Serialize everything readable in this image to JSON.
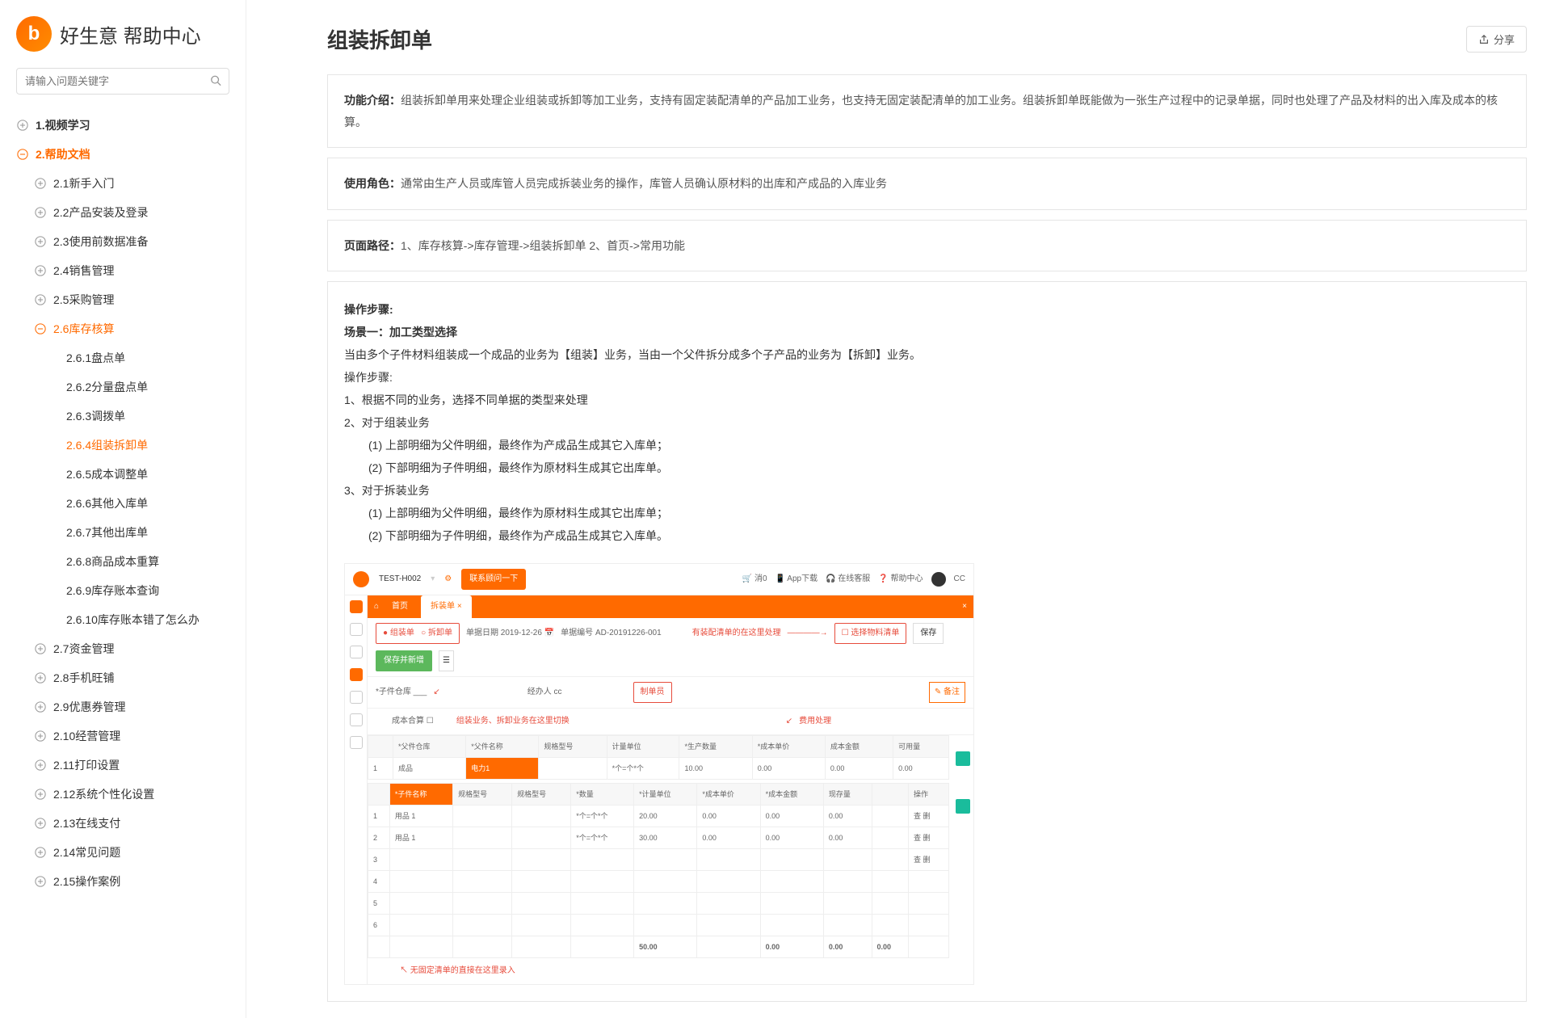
{
  "logo": {
    "glyph": "b",
    "text": "好生意 帮助中心"
  },
  "search": {
    "placeholder": "请输入问题关键字"
  },
  "nav": [
    {
      "label": "1.视频学习",
      "level": 1,
      "icon": "plus"
    },
    {
      "label": "2.帮助文档",
      "level": 1,
      "icon": "minus",
      "expanded": true
    },
    {
      "label": "2.1新手入门",
      "level": 2,
      "icon": "plus"
    },
    {
      "label": "2.2产品安装及登录",
      "level": 2,
      "icon": "plus"
    },
    {
      "label": "2.3使用前数据准备",
      "level": 2,
      "icon": "plus"
    },
    {
      "label": "2.4销售管理",
      "level": 2,
      "icon": "plus"
    },
    {
      "label": "2.5采购管理",
      "level": 2,
      "icon": "plus"
    },
    {
      "label": "2.6库存核算",
      "level": 2,
      "icon": "minus",
      "expanded": true
    },
    {
      "label": "2.6.1盘点单",
      "level": 3
    },
    {
      "label": "2.6.2分量盘点单",
      "level": 3
    },
    {
      "label": "2.6.3调拨单",
      "level": 3
    },
    {
      "label": "2.6.4组装拆卸单",
      "level": 3,
      "active": true
    },
    {
      "label": "2.6.5成本调整单",
      "level": 3
    },
    {
      "label": "2.6.6其他入库单",
      "level": 3
    },
    {
      "label": "2.6.7其他出库单",
      "level": 3
    },
    {
      "label": "2.6.8商品成本重算",
      "level": 3
    },
    {
      "label": "2.6.9库存账本查询",
      "level": 3
    },
    {
      "label": "2.6.10库存账本错了怎么办",
      "level": 3
    },
    {
      "label": "2.7资金管理",
      "level": 2,
      "icon": "plus"
    },
    {
      "label": "2.8手机旺铺",
      "level": 2,
      "icon": "plus"
    },
    {
      "label": "2.9优惠券管理",
      "level": 2,
      "icon": "plus"
    },
    {
      "label": "2.10经营管理",
      "level": 2,
      "icon": "plus"
    },
    {
      "label": "2.11打印设置",
      "level": 2,
      "icon": "plus"
    },
    {
      "label": "2.12系统个性化设置",
      "level": 2,
      "icon": "plus"
    },
    {
      "label": "2.13在线支付",
      "level": 2,
      "icon": "plus"
    },
    {
      "label": "2.14常见问题",
      "level": 2,
      "icon": "plus"
    },
    {
      "label": "2.15操作案例",
      "level": 2,
      "icon": "plus"
    }
  ],
  "page": {
    "title": "组装拆卸单",
    "share": "分享"
  },
  "intro": {
    "label": "功能介绍：",
    "text": "组装拆卸单用来处理企业组装或拆卸等加工业务，支持有固定装配清单的产品加工业务，也支持无固定装配清单的加工业务。组装拆卸单既能做为一张生产过程中的记录单据，同时也处理了产品及材料的出入库及成本的核算。"
  },
  "role": {
    "label": "使用角色：",
    "text": "通常由生产人员或库管人员完成拆装业务的操作，库管人员确认原材料的出库和产成品的入库业务"
  },
  "path": {
    "label": "页面路径：",
    "text": "1、库存核算->库存管理->组装拆卸单 2、首页->常用功能"
  },
  "steps": {
    "heading": "操作步骤:",
    "scene": "场景一：加工类型选择",
    "desc": "当由多个子件材料组装成一个成品的业务为【组装】业务，当由一个父件拆分成多个子产品的业务为【拆卸】业务。",
    "sub": "操作步骤:",
    "s1": "1、根据不同的业务，选择不同单据的类型来处理",
    "s2": "2、对于组装业务",
    "s2a": "(1) 上部明细为父件明细，最终作为产成品生成其它入库单；",
    "s2b": "(2) 下部明细为子件明细，最终作为原材料生成其它出库单。",
    "s3": "3、对于拆装业务",
    "s3a": "(1) 上部明细为父件明细，最终作为原材料生成其它出库单；",
    "s3b": "(2) 下部明细为子件明细，最终作为产成品生成其它入库单。"
  },
  "ss": {
    "top": {
      "code": "TEST-H002",
      "btn": "联系顾问一下",
      "cart": "消0",
      "app": "App下载",
      "online": "在线客服",
      "help": "帮助中心",
      "user": "CC"
    },
    "tabs": {
      "home": "首页",
      "active": "拆装单"
    },
    "form": {
      "type_a": "组装单",
      "type_b": "拆卸单",
      "date_lbl": "单据日期",
      "date": "2019-12-26",
      "no_lbl": "单据编号",
      "no": "AD-20191226-001",
      "note1": "有装配清单的在这里处理",
      "btn1": "选择物料清单",
      "btn2": "保存",
      "btn3": "保存并新增",
      "note2": "组装业务、拆卸业务在这里切换",
      "field1": "子件仓库",
      "field2": "经办人",
      "field2v": "cc",
      "field3": "制单员",
      "cost_lbl": "成本合算",
      "note3": "费用处理",
      "note4": "无固定清单的直接在这里录入"
    },
    "table1": {
      "cols": [
        "",
        "*父件仓库",
        "*父件名称",
        "规格型号",
        "计量单位",
        "*生产数量",
        "*成本单价",
        "成本金额",
        "可用量"
      ],
      "row": [
        "1",
        "成品",
        "电力1",
        "",
        "*个=个*个",
        "10.00",
        "0.00",
        "0.00",
        "0.00"
      ]
    },
    "table2": {
      "cols": [
        "",
        "*子件名称",
        "规格型号",
        "规格型号",
        "*数量",
        "*计量单位",
        "*成本单价",
        "*成本金额",
        "现存量",
        "",
        "操作"
      ],
      "rows": [
        [
          "1",
          "用品 1",
          "",
          "",
          "*个=个*个",
          "20.00",
          "0.00",
          "0.00",
          "0.00",
          "",
          "查 删"
        ],
        [
          "2",
          "用品 1",
          "",
          "",
          "*个=个*个",
          "30.00",
          "0.00",
          "0.00",
          "0.00",
          "",
          "查 删"
        ],
        [
          "3",
          "",
          "",
          "",
          "",
          "",
          "",
          "",
          "",
          "",
          "查 删"
        ],
        [
          "4",
          "",
          "",
          "",
          "",
          "",
          "",
          "",
          "",
          "",
          ""
        ],
        [
          "5",
          "",
          "",
          "",
          "",
          "",
          "",
          "",
          "",
          "",
          ""
        ],
        [
          "6",
          "",
          "",
          "",
          "",
          "",
          "",
          "",
          "",
          "",
          ""
        ]
      ],
      "footer": [
        "",
        "",
        "",
        "",
        "",
        "50.00",
        "",
        "0.00",
        "0.00",
        "0.00",
        ""
      ]
    }
  }
}
